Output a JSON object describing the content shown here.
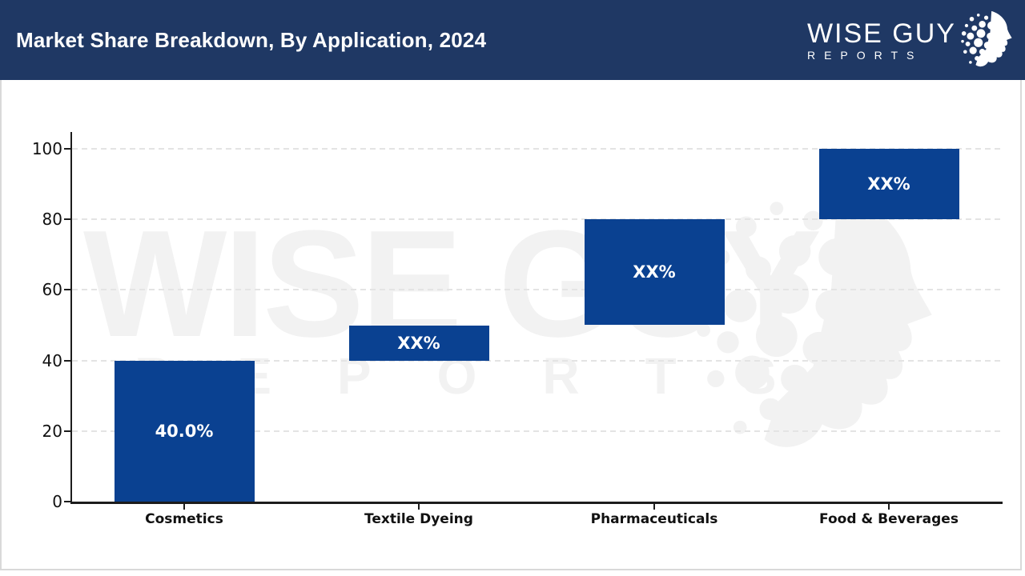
{
  "header": {
    "title": "Market Share Breakdown, By Application, 2024",
    "bg_color": "#1f3864",
    "logo": {
      "line1": "WISE GUY",
      "line2": "REPORTS"
    }
  },
  "watermark": {
    "line1": "WISE GUY",
    "line2": "REPORTS"
  },
  "chart_data": {
    "type": "bar",
    "subtype": "waterfall",
    "title": "Market Share Breakdown, By Application, 2024",
    "categories": [
      "Cosmetics",
      "Textile Dyeing",
      "Pharmaceuticals",
      "Food & Beverages"
    ],
    "series": [
      {
        "name": "Market Share",
        "base": [
          0,
          40,
          50,
          80
        ],
        "top": [
          40,
          50,
          80,
          100
        ],
        "values": [
          40,
          10,
          30,
          20
        ],
        "labels": [
          "40.0%",
          "XX%",
          "XX%",
          "XX%"
        ]
      }
    ],
    "xlabel": "",
    "ylabel": "",
    "ylim": [
      0,
      100
    ],
    "yticks": [
      0,
      20,
      40,
      60,
      80,
      100
    ],
    "grid": "horizontal-dashed",
    "legend": "none",
    "bar_color": "#0a4191",
    "bar_label_color": "#ffffff",
    "axis_color": "#1c1c1c",
    "gridline_color": "#e4e4e4"
  }
}
